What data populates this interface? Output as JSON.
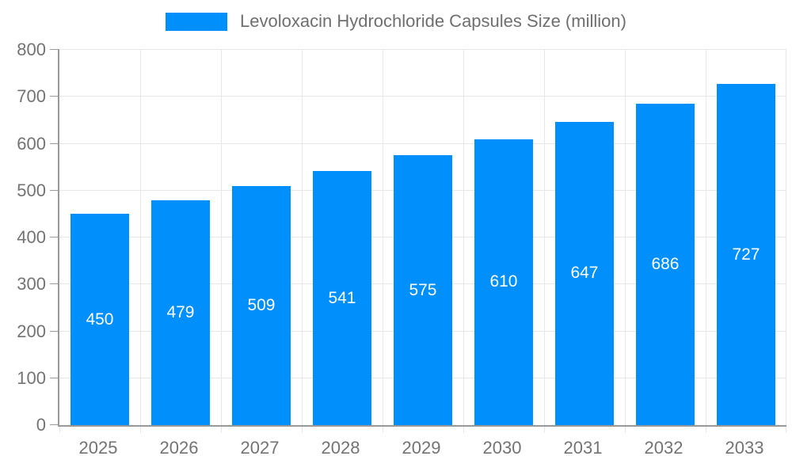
{
  "legend": {
    "label": "Levoloxacin Hydrochloride Capsules Size (million)"
  },
  "chart_data": {
    "type": "bar",
    "title": "Levoloxacin Hydrochloride Capsules Size (million)",
    "categories": [
      "2025",
      "2026",
      "2027",
      "2028",
      "2029",
      "2030",
      "2031",
      "2032",
      "2033"
    ],
    "values": [
      450,
      479,
      509,
      541,
      575,
      610,
      647,
      686,
      727
    ],
    "xlabel": "",
    "ylabel": "",
    "ylim": [
      0,
      800
    ],
    "yticks": [
      0,
      100,
      200,
      300,
      400,
      500,
      600,
      700,
      800
    ],
    "grid": true,
    "legend_position": "top-center",
    "colors": {
      "bar": "#008FFB",
      "value_label": "#ffffff",
      "axis": "#999999",
      "grid": "#e7e7e7",
      "tick_label": "#737373",
      "title": "#6f6f6f"
    }
  }
}
